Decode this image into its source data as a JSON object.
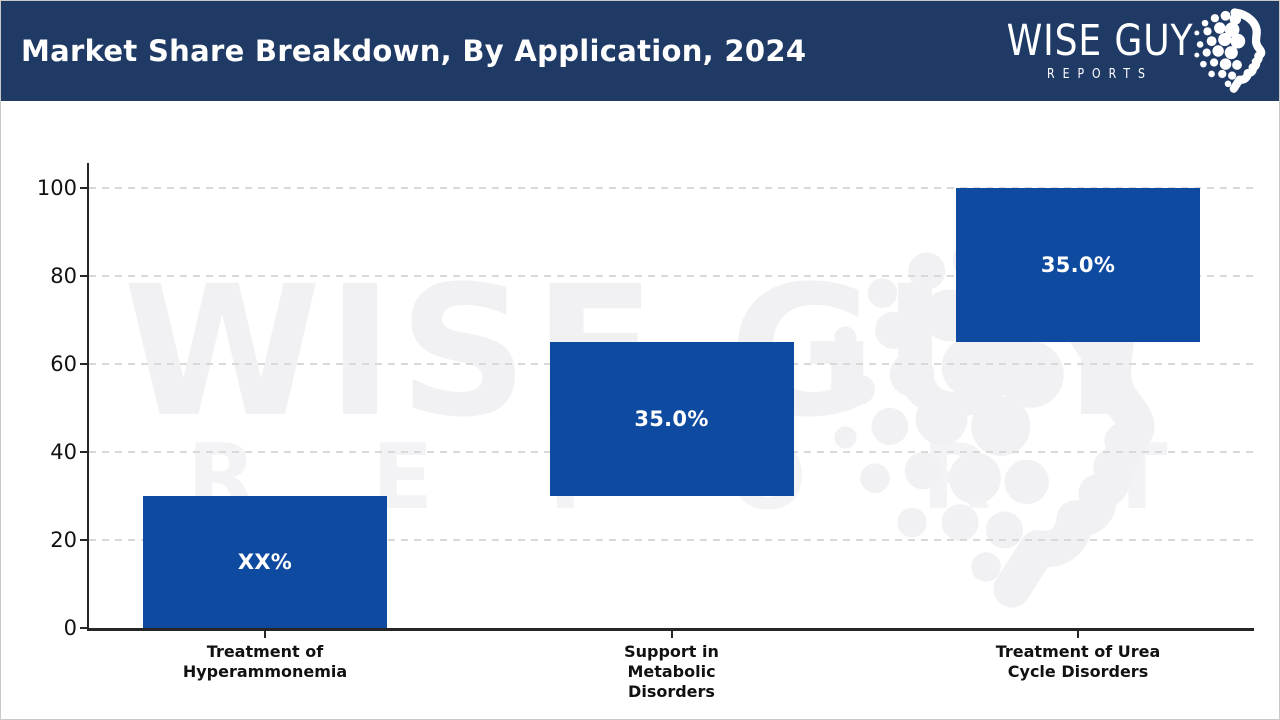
{
  "header": {
    "title": "Market Share Breakdown, By Application, 2024",
    "logo": {
      "brand_line1": "WISE GUY",
      "brand_line2": "REPORTS"
    }
  },
  "watermark": {
    "line1": "WISE GUY",
    "line2": "R E P O R T S"
  },
  "chart_data": {
    "type": "bar",
    "subtype": "waterfall",
    "title": "Market Share Breakdown, By Application, 2024",
    "categories": [
      {
        "label": "Treatment of Hyperammonemia",
        "lines": [
          "Treatment of",
          "Hyperammonemia"
        ]
      },
      {
        "label": "Support in Metabolic Disorders",
        "lines": [
          "Support in",
          "Metabolic",
          "Disorders"
        ]
      },
      {
        "label": "Treatment of Urea Cycle Disorders",
        "lines": [
          "Treatment of Urea",
          "Cycle Disorders"
        ]
      }
    ],
    "segments": [
      {
        "category": "Treatment of Hyperammonemia",
        "start": 0,
        "end": 30,
        "value_label": "XX%"
      },
      {
        "category": "Support in Metabolic Disorders",
        "start": 30,
        "end": 65,
        "value_label": "35.0%"
      },
      {
        "category": "Treatment of Urea Cycle Disorders",
        "start": 65,
        "end": 100,
        "value_label": "35.0%"
      }
    ],
    "xlabel": "",
    "ylabel": "",
    "yticks": [
      0,
      20,
      40,
      60,
      80,
      100
    ],
    "ylim": [
      0,
      105.5
    ],
    "grid": "horizontal-dashed",
    "legend": "none",
    "bar_color": "#0d4aa0",
    "bar_label_color": "#ffffff"
  },
  "colors": {
    "header_bg": "#203a66",
    "bar": "#0d4aa0",
    "grid": "#d9d9d9",
    "axis": "#262626",
    "watermark": "#f1f1f4",
    "page_border": "#c9c9c9"
  }
}
